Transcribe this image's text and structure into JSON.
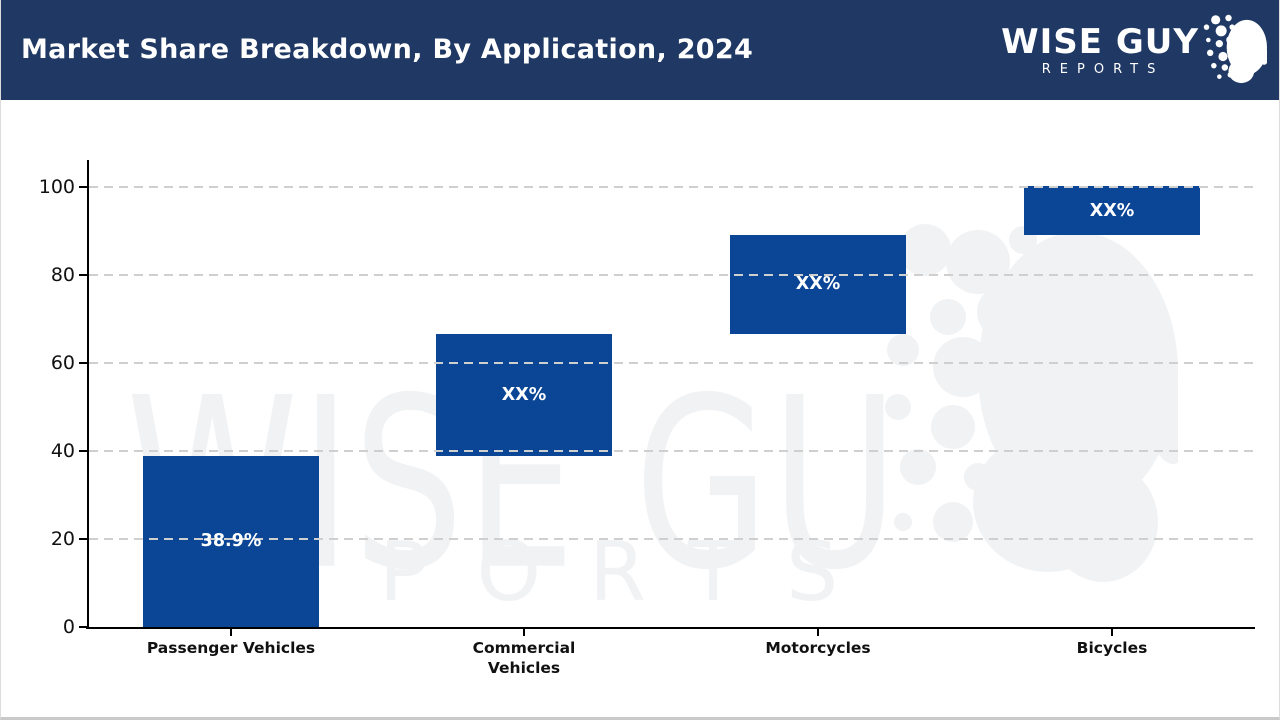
{
  "header": {
    "title": "Market Share Breakdown, By Application, 2024",
    "logo": {
      "line1": "WISE GUY",
      "line2": "REPORTS"
    }
  },
  "watermark": {
    "line1": "WISE GU",
    "line2": "PORTS"
  },
  "colors": {
    "header_bg": "#1f3864",
    "bar": "#0b4596",
    "axis": "#000000",
    "gridline": "#cfcfcf",
    "watermark": "#f1f2f4",
    "bar_label_text": "#ffffff"
  },
  "chart_data": {
    "type": "bar",
    "subtype": "waterfall",
    "title": "Market Share Breakdown, By Application, 2024",
    "categories": [
      "Passenger Vehicles",
      "Commercial\nVehicles",
      "Motorcycles",
      "Bicycles"
    ],
    "segments": [
      {
        "category": "Passenger Vehicles",
        "start": 0,
        "end": 38.9,
        "value": 38.9,
        "label": "38.9%"
      },
      {
        "category": "Commercial Vehicles",
        "start": 38.9,
        "end": 66.7,
        "value": 27.8,
        "label": "XX%"
      },
      {
        "category": "Motorcycles",
        "start": 66.7,
        "end": 89.1,
        "value": 22.4,
        "label": "XX%"
      },
      {
        "category": "Bicycles",
        "start": 89.1,
        "end": 100.2,
        "value": 11.1,
        "label": "XX%"
      }
    ],
    "yticks": [
      0,
      20,
      40,
      60,
      80,
      100
    ],
    "ylim": [
      0,
      106
    ],
    "xlabel": "",
    "ylabel": "",
    "grid": "horizontal-dashed",
    "legend": "none"
  }
}
